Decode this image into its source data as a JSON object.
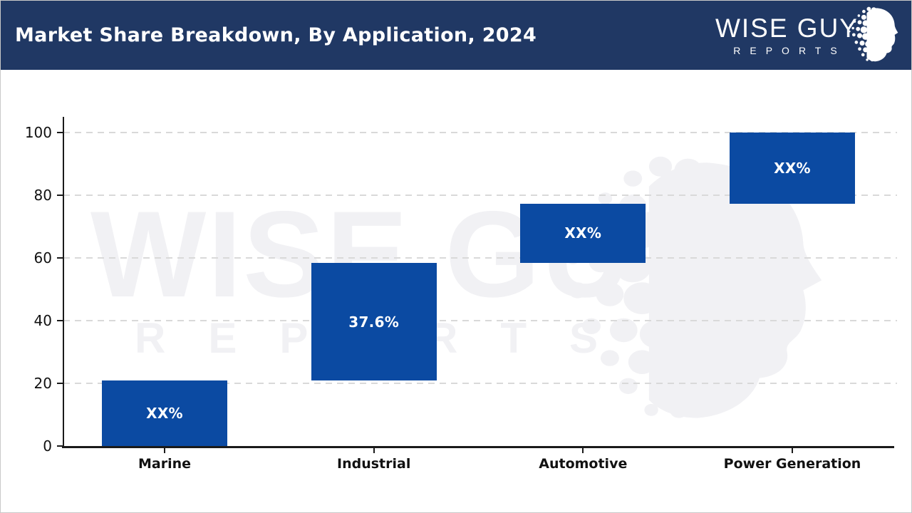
{
  "header": {
    "title": "Market Share Breakdown, By Application, 2024",
    "bg_color": "#203864"
  },
  "brand": {
    "wordmark": "WISE GUY",
    "subtitle": "REPORTS"
  },
  "chart_data": {
    "type": "bar",
    "variant": "waterfall",
    "title": "Market Share Breakdown, By Application, 2024",
    "categories": [
      "Marine",
      "Industrial",
      "Automotive",
      "Power Generation"
    ],
    "segments": [
      {
        "category": "Marine",
        "label": "XX%",
        "start": 0,
        "end": 20.8
      },
      {
        "category": "Industrial",
        "label": "37.6%",
        "start": 20.8,
        "end": 58.4
      },
      {
        "category": "Automotive",
        "label": "XX%",
        "start": 58.4,
        "end": 77.3
      },
      {
        "category": "Power Generation",
        "label": "XX%",
        "start": 77.3,
        "end": 100
      }
    ],
    "xlabel": "",
    "ylabel": "",
    "ylim": [
      0,
      105
    ],
    "yticks": [
      0,
      20,
      40,
      60,
      80,
      100
    ],
    "grid": {
      "axis": "y",
      "style": "dashed",
      "color": "#d9d9d9"
    },
    "bar_color": "#0b4aa2",
    "bar_label_color": "#ffffff",
    "axis_color": "#1a1a1a",
    "legend": null
  }
}
